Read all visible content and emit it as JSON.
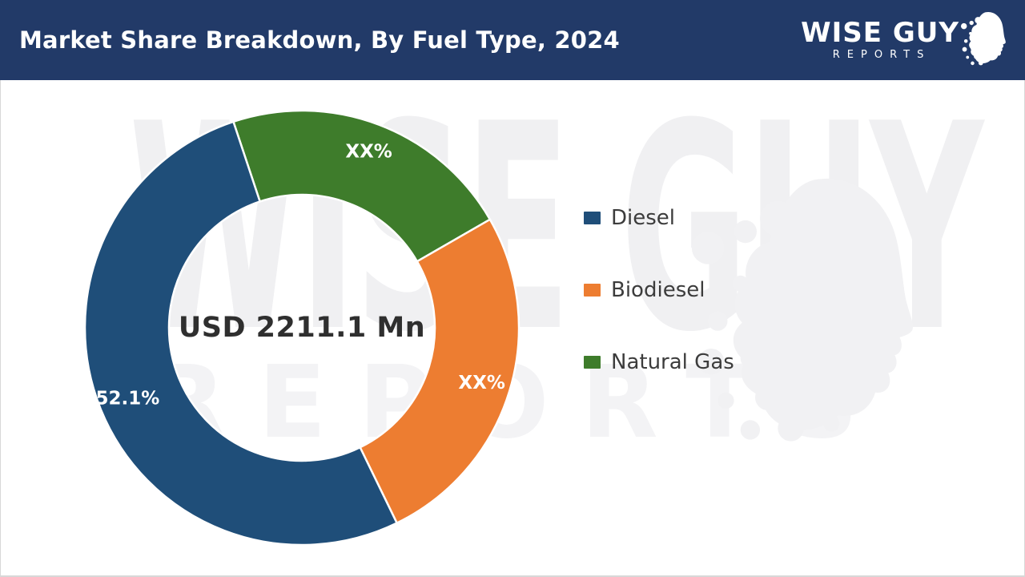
{
  "header": {
    "title": "Market Share Breakdown, By Fuel Type, 2024",
    "logo": {
      "primary": "WISE GUY",
      "secondary": "REPORTS"
    }
  },
  "chart_data": {
    "type": "pie",
    "subtype": "donut",
    "title": "Market Share Breakdown, By Fuel Type, 2024",
    "center_label": "USD 2211.1 Mn",
    "start_angle_deg": -18.4,
    "legend_position": "right",
    "slices": [
      {
        "name": "Natural Gas",
        "display_pct": "XX%",
        "approx_pct": 21.8,
        "color": "#3E7C2B"
      },
      {
        "name": "Biodiesel",
        "display_pct": "XX%",
        "approx_pct": 26.1,
        "color": "#ED7D31"
      },
      {
        "name": "Diesel",
        "display_pct": "52.1%",
        "approx_pct": 52.1,
        "color": "#1F4E79"
      }
    ]
  },
  "legend": {
    "items": [
      {
        "label": "Diesel",
        "color": "#1F4E79"
      },
      {
        "label": "Biodiesel",
        "color": "#ED7D31"
      },
      {
        "label": "Natural Gas",
        "color": "#3E7C2B"
      }
    ]
  },
  "watermark": {
    "line1": "WISE GUY",
    "line2": "REPORTS"
  },
  "colors": {
    "header_bg": "#223A68",
    "center_text": "#2F2F2F",
    "legend_text": "#3C3C3C",
    "watermark": "#F0F0F2",
    "border": "#D8D8D8"
  }
}
